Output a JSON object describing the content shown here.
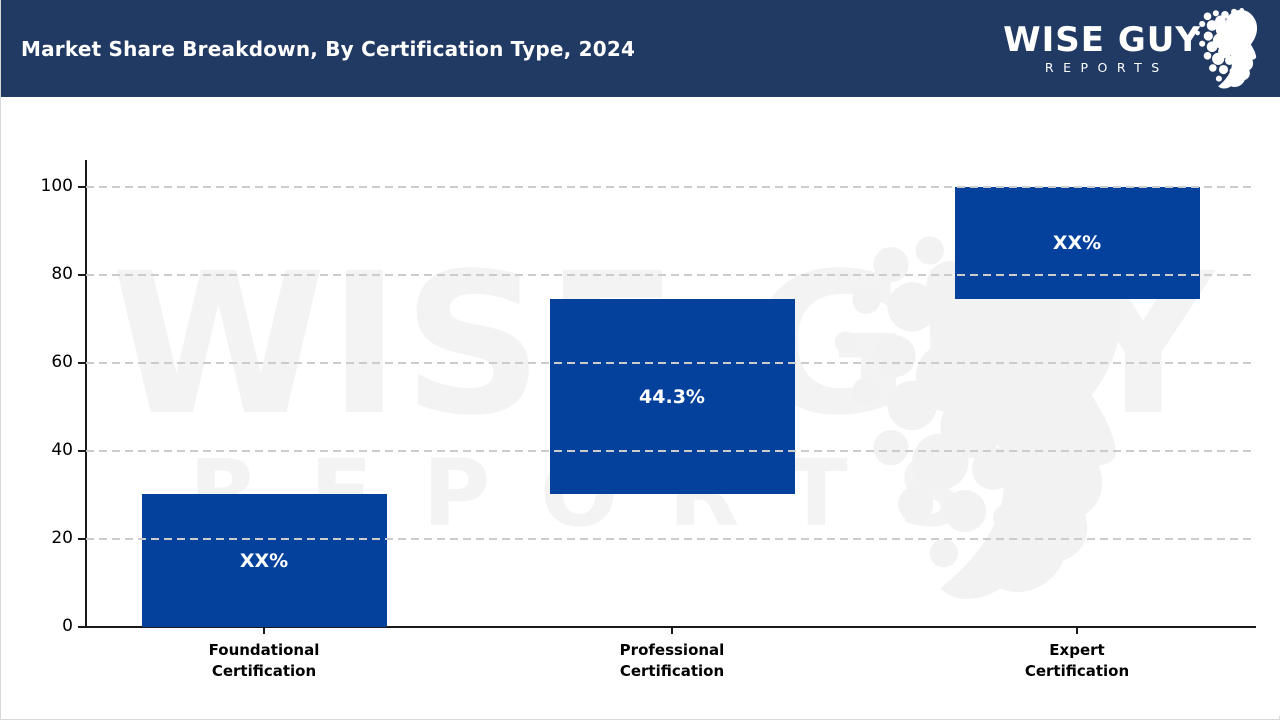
{
  "header": {
    "title": "Market Share Breakdown, By Certification Type, 2024",
    "logo": {
      "line1": "WISE GUY",
      "line2": "REPORTS"
    }
  },
  "watermark": {
    "line1": "WISE GUY",
    "line2": "REPORTS"
  },
  "chart_data": {
    "type": "bar",
    "subtype": "floating-segment-column",
    "title": "Market Share Breakdown, By Certification Type, 2024",
    "categories": [
      [
        "Foundational",
        "Certification"
      ],
      [
        "Professional",
        "Certification"
      ],
      [
        "Expert",
        "Certification"
      ]
    ],
    "segments": [
      {
        "from": 0,
        "to": 30.2,
        "label": "XX%"
      },
      {
        "from": 30.2,
        "to": 74.5,
        "label": "44.3%"
      },
      {
        "from": 74.5,
        "to": 100,
        "label": "XX%"
      }
    ],
    "yticks": [
      0,
      20,
      40,
      60,
      80,
      100
    ],
    "ylim": [
      0,
      100
    ],
    "grid": {
      "horizontal": true,
      "style": "dashed",
      "color": "#cccccc",
      "above_bars": true
    },
    "legend": null,
    "xlabel": "",
    "ylabel": ""
  },
  "colors": {
    "header_bg": "#213A63",
    "bar_fill": "#04419C",
    "grid": "#cccccc",
    "axis": "#1a1a1a",
    "watermark": "#f3f3f3",
    "title_text": "#ffffff"
  }
}
